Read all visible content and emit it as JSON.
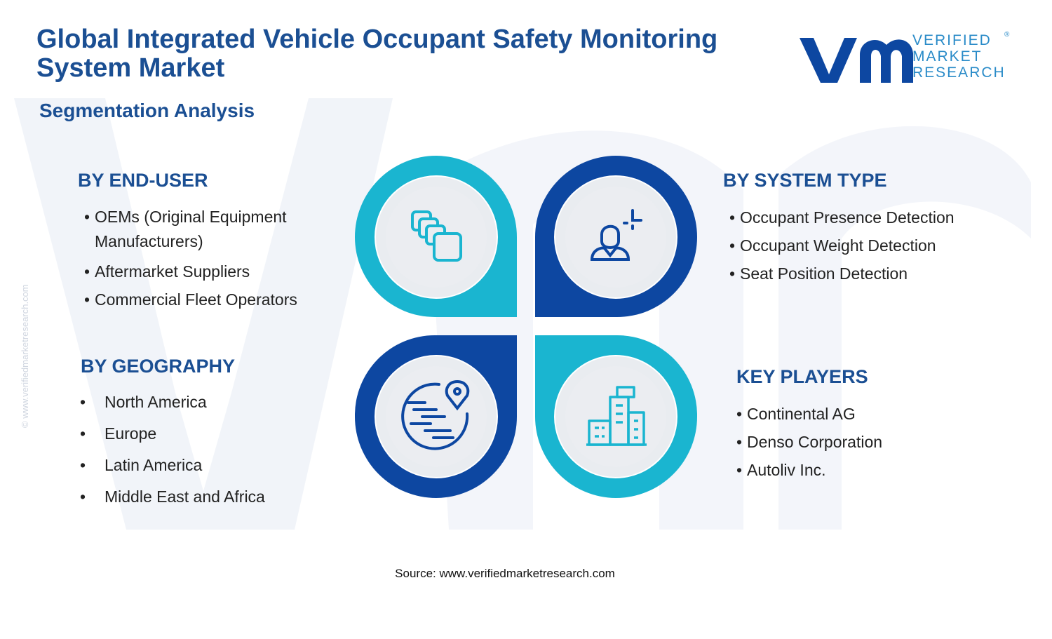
{
  "header": {
    "title": "Global Integrated Vehicle Occupant Safety Monitoring System Market",
    "subtitle": "Segmentation Analysis"
  },
  "logo": {
    "line1": "VERIFIED",
    "line2": "MARKET",
    "line3": "RESEARCH",
    "registered": "®"
  },
  "segments": {
    "end_user": {
      "heading": "BY END-USER",
      "items": [
        "OEMs (Original Equipment",
        "Manufacturers)",
        "Aftermarket Suppliers",
        "Commercial Fleet Operators"
      ]
    },
    "system_type": {
      "heading": "BY SYSTEM TYPE",
      "items": [
        "Occupant Presence Detection",
        "Occupant Weight Detection",
        "Seat Position Detection"
      ]
    },
    "geography": {
      "heading": "BY GEOGRAPHY",
      "items": [
        "North America",
        "Europe",
        "Latin America",
        "Middle East and Africa"
      ]
    },
    "key_players": {
      "heading": "KEY PLAYERS",
      "items": [
        "Continental AG",
        "Denso Corporation",
        "Autoliv Inc."
      ]
    }
  },
  "bullet": "•",
  "icons": {
    "top_left": "stacked-squares-icon",
    "top_right": "user-scan-icon",
    "bottom_left": "globe-location-icon",
    "bottom_right": "city-buildings-icon"
  },
  "colors": {
    "navy": "#1b4f93",
    "cyan": "#1ab5d0",
    "dark_blue": "#0d47a1",
    "circle_bg": "#e9ecf0"
  },
  "source": "Source: www.verifiedmarketresearch.com",
  "side_note": "© www.verifiedmarketresearch.com"
}
